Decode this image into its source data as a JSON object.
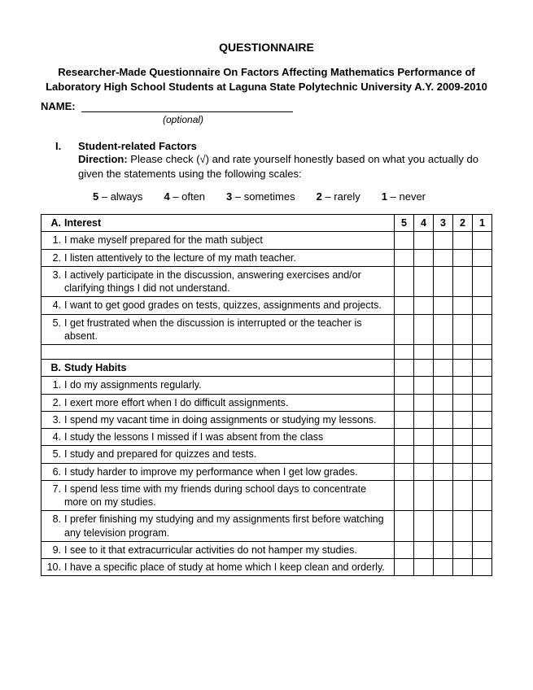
{
  "title": "QUESTIONNAIRE",
  "subtitle": "Researcher-Made Questionnaire On Factors Affecting Mathematics Performance of Laboratory High School Students at Laguna State Polytechnic University A.Y. 2009-2010",
  "name_label": "NAME:",
  "optional": "(optional)",
  "section": {
    "num": "I.",
    "title": "Student-related Factors",
    "direction_label": "Direction:",
    "direction_text": " Please check (√) and rate yourself honestly based on what you actually do given the statements using the following scales:"
  },
  "scales": [
    {
      "k": "5",
      "v": "always"
    },
    {
      "k": "4",
      "v": "often"
    },
    {
      "k": "3",
      "v": "sometimes"
    },
    {
      "k": "2",
      "v": "rarely"
    },
    {
      "k": "1",
      "v": "never"
    }
  ],
  "rating_cols": [
    "5",
    "4",
    "3",
    "2",
    "1"
  ],
  "groups": [
    {
      "letter": "A.",
      "title": "Interest",
      "items": [
        "I make myself prepared for the math subject",
        "I listen attentively to the lecture of my math teacher.",
        "I actively participate in the discussion, answering exercises and/or clarifying things I did not understand.",
        "I want to get good grades on tests, quizzes, assignments and projects.",
        "I get frustrated when the discussion is interrupted or the teacher is absent."
      ]
    },
    {
      "letter": "B.",
      "title": "Study Habits",
      "items": [
        "I do my assignments regularly.",
        "I exert more effort when I do difficult assignments.",
        "I spend my vacant time in doing assignments or studying my lessons.",
        "I study the lessons I missed if I was absent from the class",
        "I study and prepared for quizzes and tests.",
        "I study harder to improve my performance when I get low grades.",
        "I spend less time with my friends during school days to concentrate more on my studies.",
        "I prefer finishing my studying and my assignments first before watching any television program.",
        "I see to it that extracurricular activities do not hamper my studies.",
        "I have a specific place of study at home which I keep clean and orderly."
      ]
    }
  ]
}
